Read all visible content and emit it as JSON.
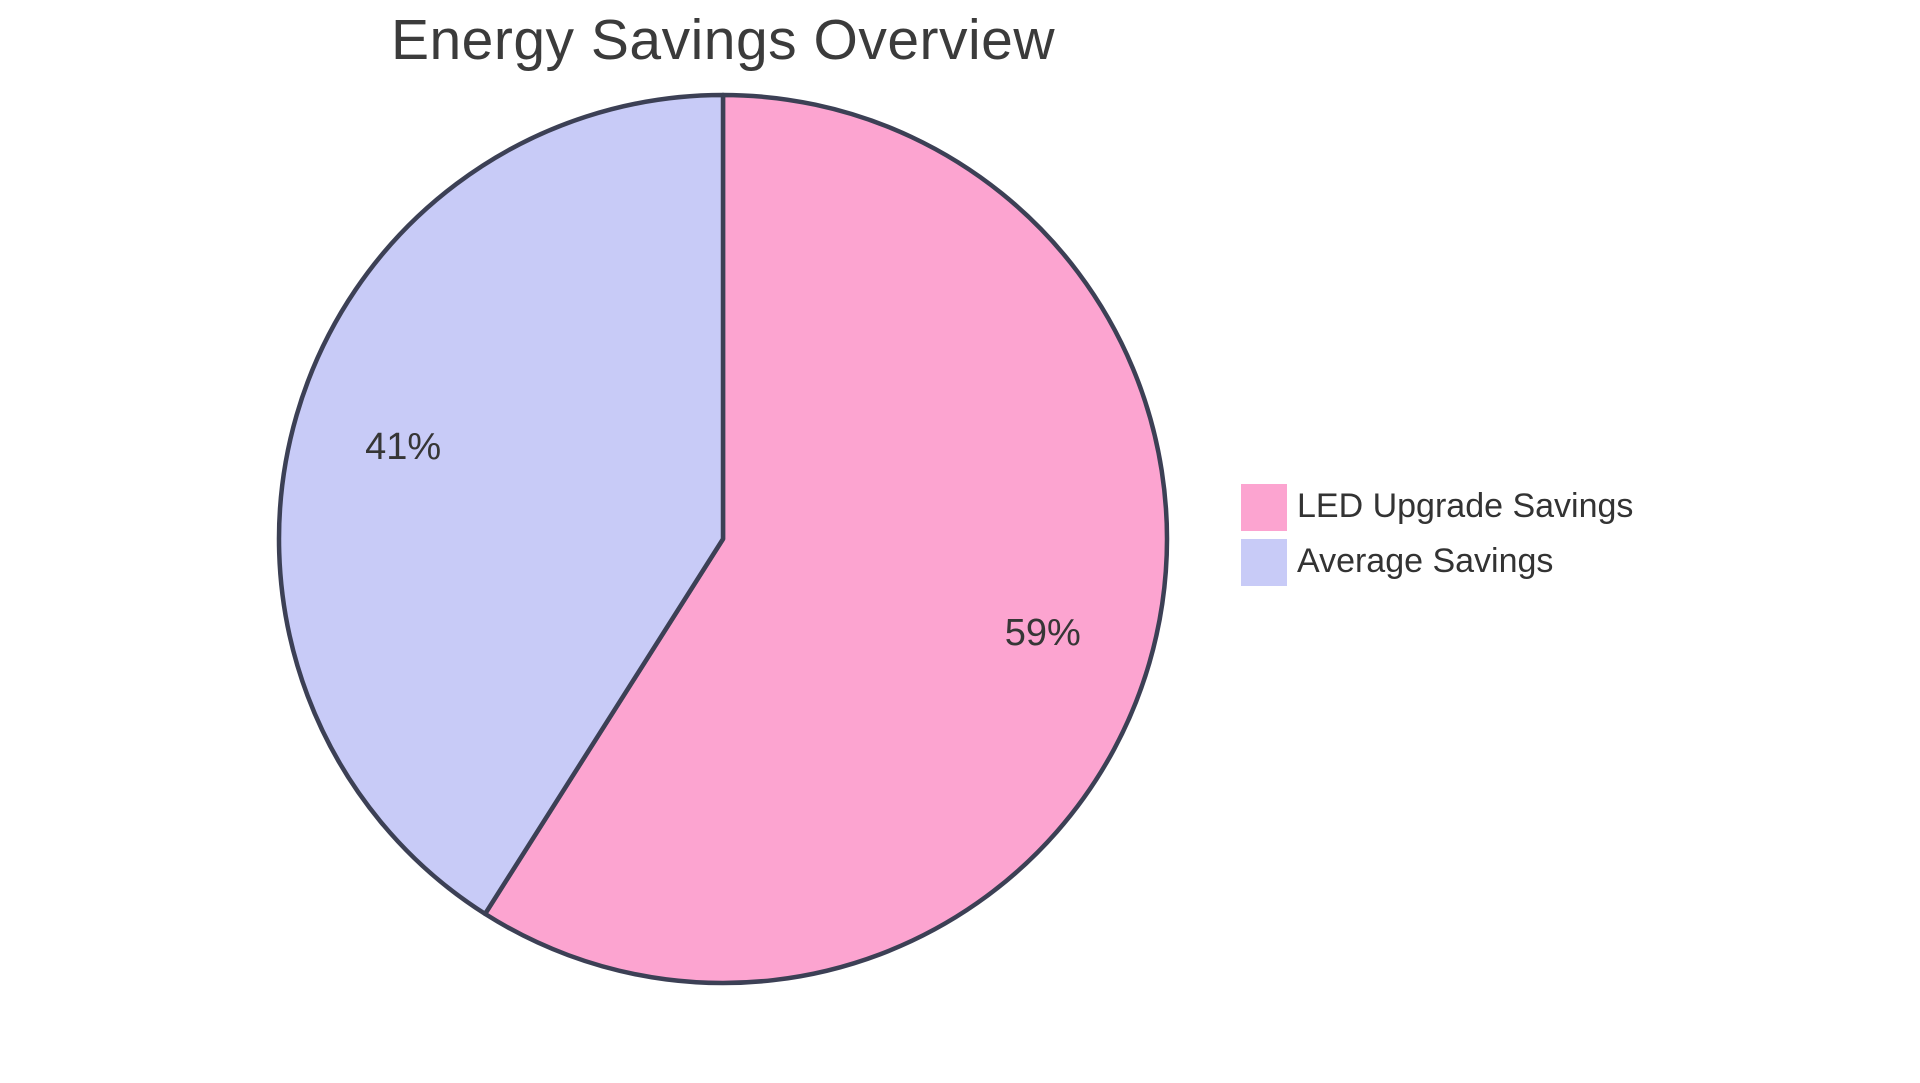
{
  "chart_data": {
    "type": "pie",
    "title": "Energy Savings Overview",
    "slices": [
      {
        "label": "LED Upgrade Savings",
        "value": 59,
        "percent_label": "59%",
        "color": "#FCA4D0"
      },
      {
        "label": "Average Savings",
        "value": 41,
        "percent_label": "41%",
        "color": "#C8CBF7"
      }
    ],
    "start_angle": "12-oclock",
    "direction": "clockwise",
    "outline_color": "#3C4055",
    "title_color": "#3B3B3B",
    "percent_label_color": "#363636",
    "legend_text_color": "#333333",
    "background_color": "#FFFFFF",
    "legend_position": "right-middle"
  }
}
